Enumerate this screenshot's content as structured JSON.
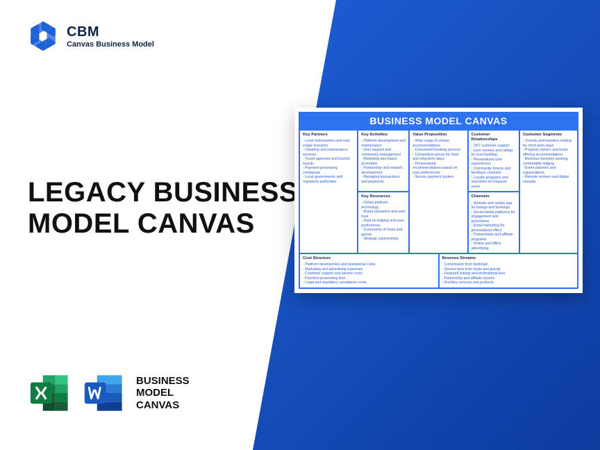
{
  "logo": {
    "title": "CBM",
    "subtitle": "Canvas Business Model"
  },
  "main_title_line1": "LEGACY BUSINESS",
  "main_title_line2": "MODEL CANVAS",
  "bmc_label_line1": "BUSINESS",
  "bmc_label_line2": "MODEL",
  "bmc_label_line3": "CANVAS",
  "canvas": {
    "header": "BUSINESS MODEL CANVAS",
    "colors": {
      "brand_blue": "#2e72f0",
      "text_blue": "#2e5bd0",
      "header_dark": "#0d2344",
      "bg_gradient_start": "#1d5fd6",
      "bg_gradient_end": "#0d3b9e",
      "card_bg": "#ffffff"
    },
    "blocks": {
      "key_partners": {
        "title": "Key Partners",
        "items": [
          "Local homeowners and real estate investors",
          "Cleaning and maintenance services",
          "Travel agencies and tourism boards",
          "Payment processing companies",
          "Local governments and regulatory authorities"
        ]
      },
      "key_activities": {
        "title": "Key Activities",
        "items": [
          "Platform development and maintenance",
          "User support and community management",
          "Marketing and brand promotion",
          "Partnership and network development",
          "Managing transactions and payments"
        ]
      },
      "key_resources": {
        "title": "Key Resources",
        "items": [
          "Online platform technology",
          "Brand reputation and user trust",
          "Data on lodging and user preferences",
          "Community of hosts and guests",
          "Strategic partnerships"
        ]
      },
      "value_proposition": {
        "title": "Value Proposition",
        "items": [
          "Wide range of unique accommodations",
          "Convenient booking process",
          "Competitive prices for short and long-term stays",
          "Personalized recommendations based on user preferences",
          "Secure payment system"
        ]
      },
      "customer_relationships": {
        "title": "Customer Relationships",
        "items": [
          "24/7 customer support",
          "User reviews and ratings for trust-building",
          "Personalized user experiences",
          "Community forums and feedback channels",
          "Loyalty programs and incentives for frequent users"
        ]
      },
      "channels": {
        "title": "Channels",
        "items": [
          "Website and mobile app for listings and bookings",
          "Social media platforms for engagement and promotions",
          "Email marketing for personalized offers",
          "Partnerships and affiliate programs",
          "Online and offline advertising"
        ]
      },
      "customer_segments": {
        "title": "Customer Segments",
        "items": [
          "Tourists and travelers looking for short-term stays",
          "Property owners and hosts offering accommodations",
          "Business travelers seeking comfortable lodging",
          "Event planners and organizations",
          "Remote workers and digital nomads"
        ]
      },
      "cost_structure": {
        "title": "Cost Structure",
        "items": [
          "Platform development and operational costs",
          "Marketing and advertising expenses",
          "Customer support and service costs",
          "Payment processing fees",
          "Legal and regulatory compliance costs"
        ]
      },
      "revenue_streams": {
        "title": "Revenue Streams",
        "items": [
          "Commission from bookings",
          "Service fees from hosts and guests",
          "Featured listings and promotional fees",
          "Partnership and affiliate income",
          "Ancillary services and products"
        ]
      }
    }
  }
}
